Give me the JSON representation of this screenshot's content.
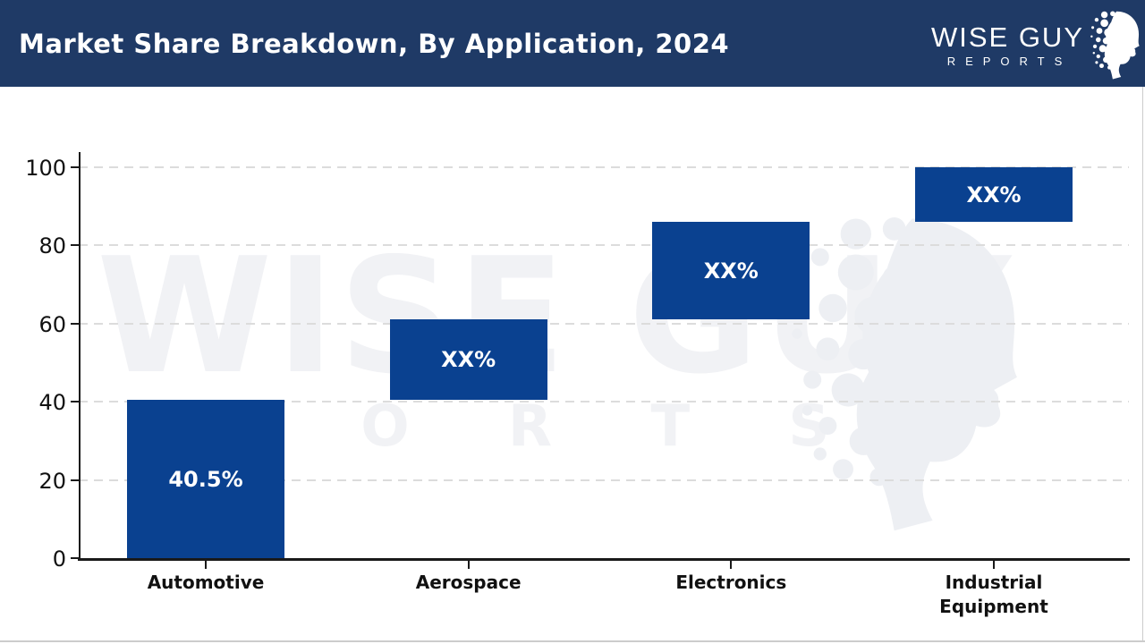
{
  "header": {
    "title": "Market Share Breakdown, By Application, 2024",
    "logo": {
      "line1": "WISE GUY",
      "line2": "REPORTS"
    }
  },
  "watermark": {
    "line1": "WISE GUY",
    "line2": "P O R T S"
  },
  "colors": {
    "header_bg": "#1f3a66",
    "bar": "#0a4190",
    "bar_label": "#ffffff",
    "gridline": "#dcdcdc",
    "axis": "#1a1a1a",
    "watermark": "#f1f2f5"
  },
  "chart_data": {
    "type": "bar",
    "subtype": "waterfall",
    "title": "Market Share Breakdown, By Application, 2024",
    "xlabel": "",
    "ylabel": "",
    "ylim": [
      0,
      100
    ],
    "yticks": [
      0,
      20,
      40,
      60,
      80,
      100
    ],
    "grid": "horizontal-dashed",
    "legend": "none",
    "categories": [
      "Automotive",
      "Aerospace",
      "Electronics",
      "Industrial Equipment"
    ],
    "segments": [
      {
        "category": "Automotive",
        "start": 0,
        "end": 40.5,
        "value": 40.5,
        "label": "40.5%"
      },
      {
        "category": "Aerospace",
        "start": 40.5,
        "end": 61,
        "value": 20.5,
        "label": "XX%"
      },
      {
        "category": "Electronics",
        "start": 61,
        "end": 86,
        "value": 25,
        "label": "XX%"
      },
      {
        "category": "Industrial Equipment",
        "start": 86,
        "end": 100,
        "value": 14,
        "label": "XX%"
      }
    ]
  }
}
